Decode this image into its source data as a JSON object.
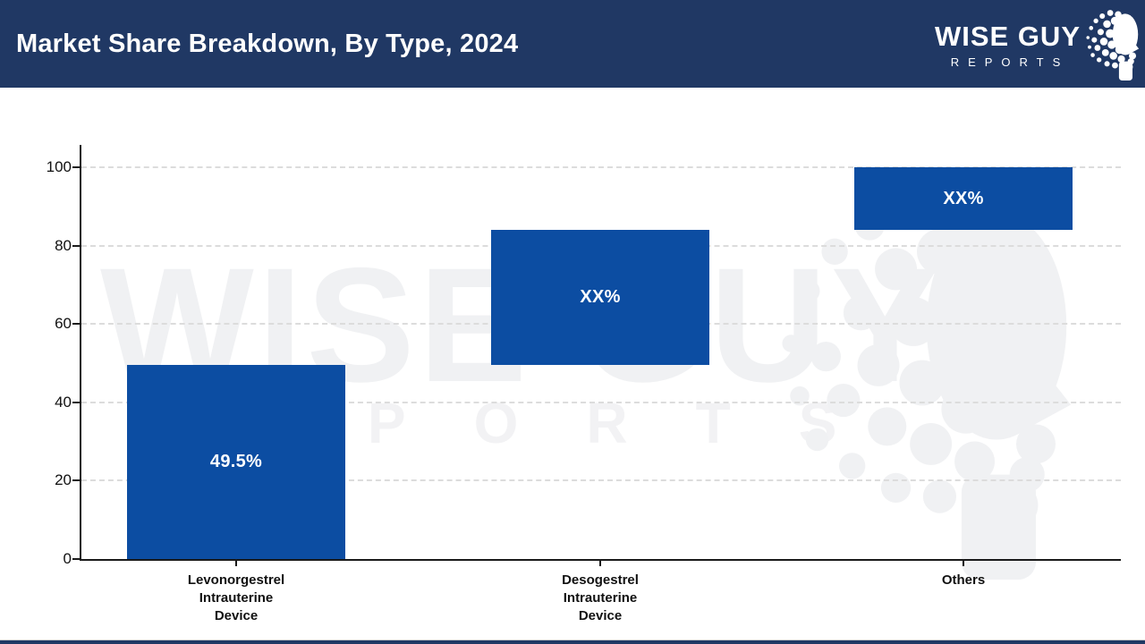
{
  "header": {
    "title": "Market Share Breakdown, By Type, 2024",
    "logo": {
      "wordmark": "WISE GUY",
      "subtext": "REPORTS"
    }
  },
  "watermark": {
    "wordmark": "WISE GUY",
    "subtext": "REPORTS"
  },
  "chart_data": {
    "type": "bar",
    "variant": "waterfall",
    "title": "Market Share Breakdown, By Type, 2024",
    "categories": [
      "Levonorgestrel\nIntrauterine\nDevice",
      "Desogestrel\nIntrauterine\nDevice",
      "Others"
    ],
    "bars": [
      {
        "start": 0,
        "end": 49.5,
        "label": "49.5%",
        "segment_value": 49.5
      },
      {
        "start": 49.5,
        "end": 84.0,
        "label": "XX%",
        "segment_value": 34.5
      },
      {
        "start": 84.0,
        "end": 100.0,
        "label": "XX%",
        "segment_value": 16.0
      }
    ],
    "yticks": [
      0,
      20,
      40,
      60,
      80,
      100
    ],
    "ylim": [
      0,
      106
    ],
    "xlabel": "",
    "ylabel": "",
    "grid": true,
    "legend": false,
    "colors": {
      "bar": "#0c4da2",
      "bar_label": "#ffffff",
      "gridline": "#dcdcdc",
      "axis": "#1a1a1a",
      "header_bg": "#203864",
      "watermark": "#f0f1f3"
    }
  }
}
